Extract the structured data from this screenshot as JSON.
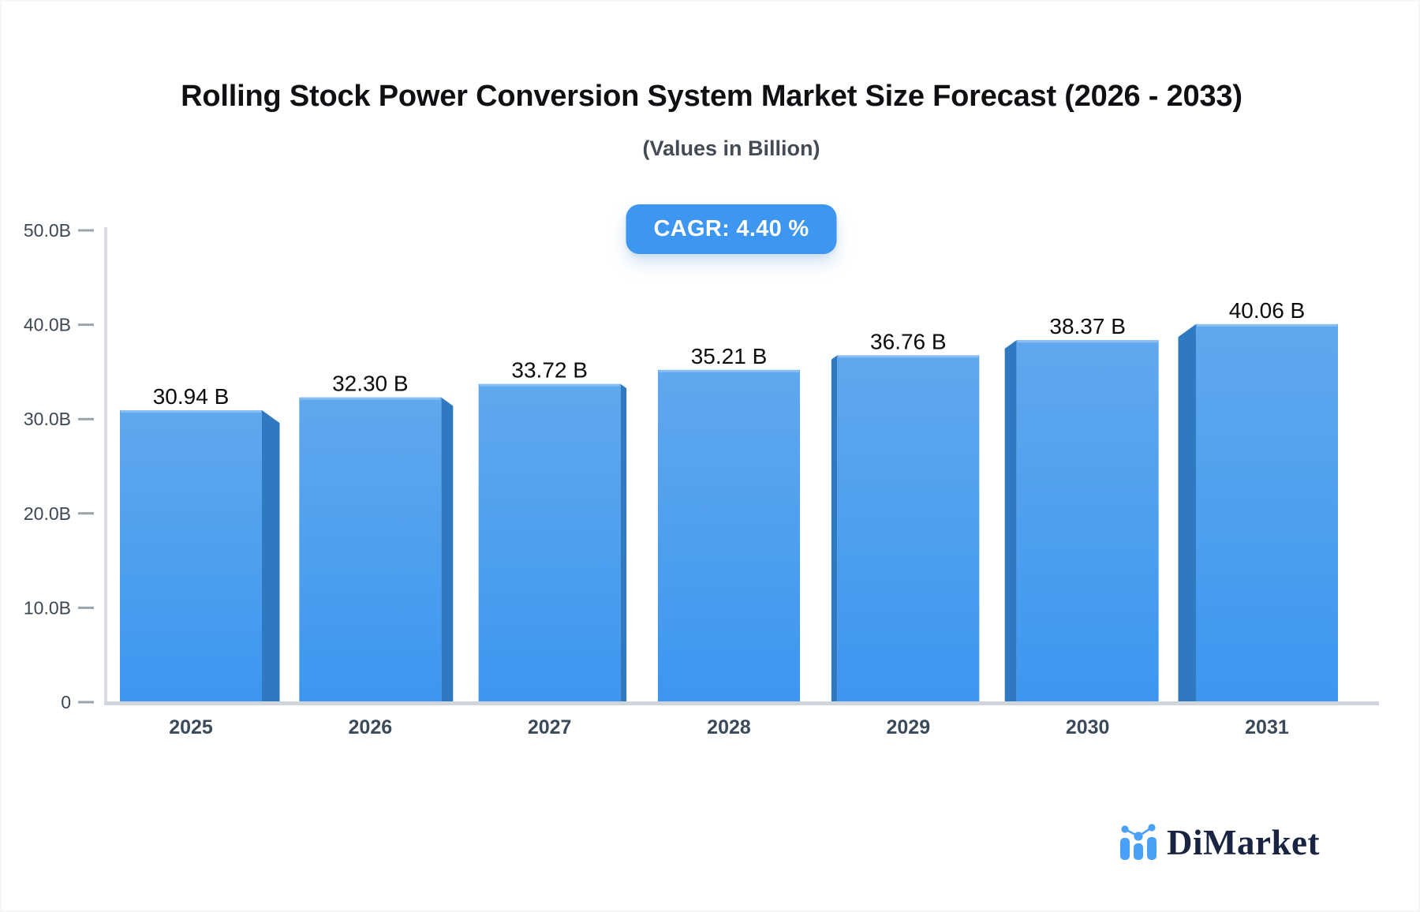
{
  "header": {
    "title": "Rolling Stock Power Conversion System Market Size Forecast (2026 - 2033)",
    "subtitle": "(Values in Billion)",
    "cagr_badge": "CAGR: 4.40 %"
  },
  "chart_data": {
    "type": "bar",
    "title": "Rolling Stock Power Conversion System Market Size Forecast (2026 - 2033)",
    "subtitle": "(Values in Billion)",
    "cagr_percent": 4.4,
    "categories": [
      "2025",
      "2026",
      "2027",
      "2028",
      "2029",
      "2030",
      "2031"
    ],
    "values": [
      30.94,
      32.3,
      33.72,
      35.21,
      36.76,
      38.37,
      40.06
    ],
    "value_labels": [
      "30.94 B",
      "32.30 B",
      "33.72 B",
      "35.21 B",
      "36.76 B",
      "38.37 B",
      "40.06 B"
    ],
    "xlabel": "",
    "ylabel": "",
    "ylim": [
      0,
      50
    ],
    "y_ticks": [
      {
        "value": 0,
        "label": "0"
      },
      {
        "value": 10,
        "label": "10.0B"
      },
      {
        "value": 20,
        "label": "20.0B"
      },
      {
        "value": 30,
        "label": "30.0B"
      },
      {
        "value": 40,
        "label": "40.0B"
      },
      {
        "value": 50,
        "label": "50.0B"
      }
    ],
    "grid": false,
    "legend": null,
    "colors": {
      "bar_face_top": "#60a8ed",
      "bar_face_bottom": "#3d96f1",
      "bar_top_highlight": "#8fc3f5",
      "bar_side": "#2e79c0",
      "axis_line": "#d9dce1",
      "baseline": "#d0d5db",
      "tick_dash": "#9ba3ac",
      "tick_label": "#3d4754",
      "year_label": "#3b4a5a",
      "value_label": "#0b0b0b",
      "badge_bg": "#3d96ef",
      "badge_text": "#ffffff"
    }
  },
  "logo": {
    "text": "DiMarket",
    "icon": "mini-bar-line-chart-icon",
    "icon_color": "#4aa0f6",
    "text_color": "#182441"
  }
}
